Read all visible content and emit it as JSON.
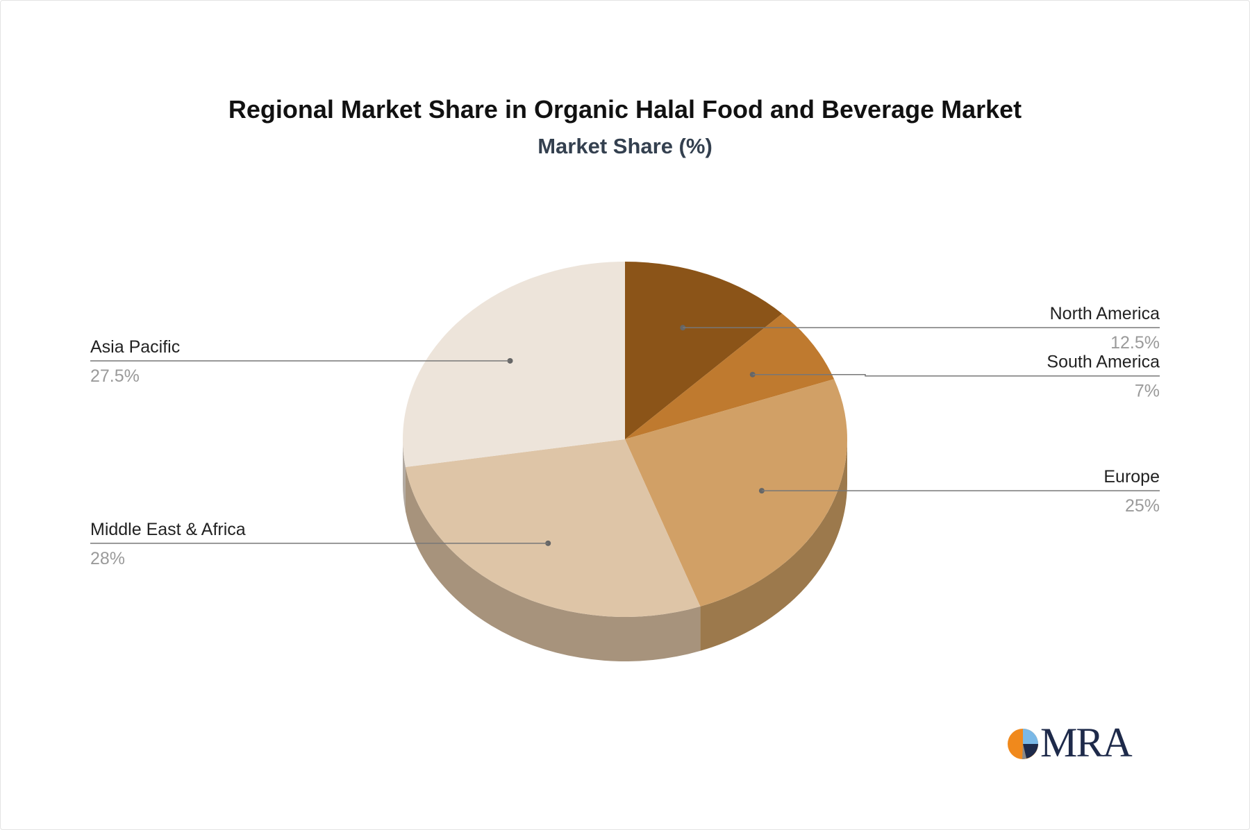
{
  "chart_data": {
    "type": "pie",
    "title": "Regional Market Share in Organic Halal Food and Beverage Market",
    "subtitle": "Market Share (%)",
    "slices": [
      {
        "label": "North America",
        "value": 12.5,
        "display": "12.5%",
        "color": "#8b5418",
        "side_color": "#6a4012",
        "label_side": "right"
      },
      {
        "label": "South America",
        "value": 7,
        "display": "7%",
        "color": "#bf7a2f",
        "side_color": "#8f5c24",
        "label_side": "right"
      },
      {
        "label": "Europe",
        "value": 25,
        "display": "25%",
        "color": "#d1a066",
        "side_color": "#9c794c",
        "label_side": "right"
      },
      {
        "label": "Middle East & Africa",
        "value": 28,
        "display": "28%",
        "color": "#dec5a7",
        "side_color": "#a7937c",
        "label_side": "left"
      },
      {
        "label": "Asia Pacific",
        "value": 27.5,
        "display": "27.5%",
        "color": "#ede4da",
        "side_color": "#b2aaa2",
        "label_side": "left"
      }
    ]
  },
  "logo": {
    "text": "MRA"
  }
}
